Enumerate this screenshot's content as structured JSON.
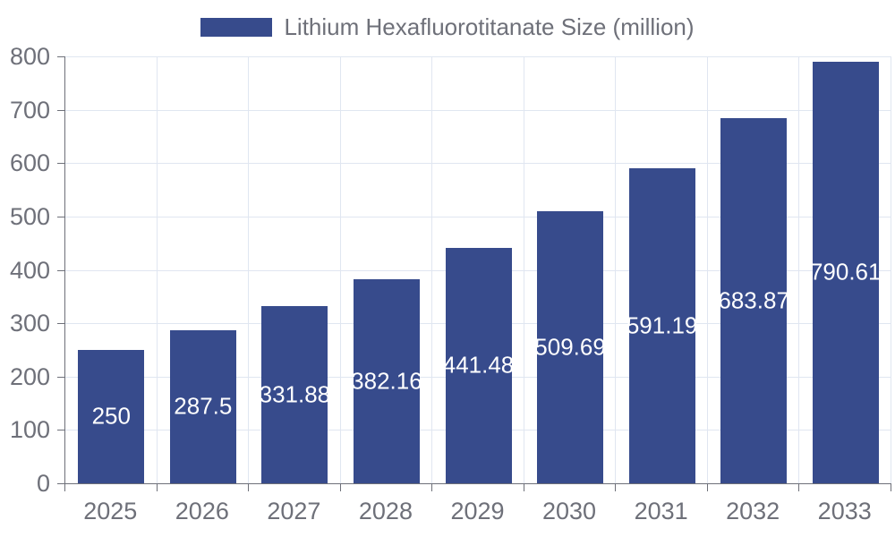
{
  "legend": {
    "label": "Lithium Hexafluorotitanate Size (million)"
  },
  "colors": {
    "bar": "#374B8C",
    "axis_text": "#6E7079",
    "axis_line": "#6E7079",
    "grid_line": "#E0E6F1",
    "value_label": "#FFFFFF",
    "background": "#FFFFFF"
  },
  "chart_data": {
    "type": "bar",
    "title": "",
    "xlabel": "",
    "ylabel": "",
    "categories": [
      "2025",
      "2026",
      "2027",
      "2028",
      "2029",
      "2030",
      "2031",
      "2032",
      "2033"
    ],
    "series": [
      {
        "name": "Lithium Hexafluorotitanate Size (million)",
        "values": [
          250,
          287.5,
          331.88,
          382.16,
          441.48,
          509.69,
          591.19,
          683.87,
          790.61
        ]
      }
    ],
    "value_labels": [
      "250",
      "287.5",
      "331.88",
      "382.16",
      "441.48",
      "509.69",
      "591.19",
      "683.87",
      "790.61"
    ],
    "value_label_position": "inside-center",
    "ylim": [
      0,
      800
    ],
    "y_ticks": [
      0,
      100,
      200,
      300,
      400,
      500,
      600,
      700,
      800
    ],
    "grid": true,
    "legend_position": "top"
  }
}
